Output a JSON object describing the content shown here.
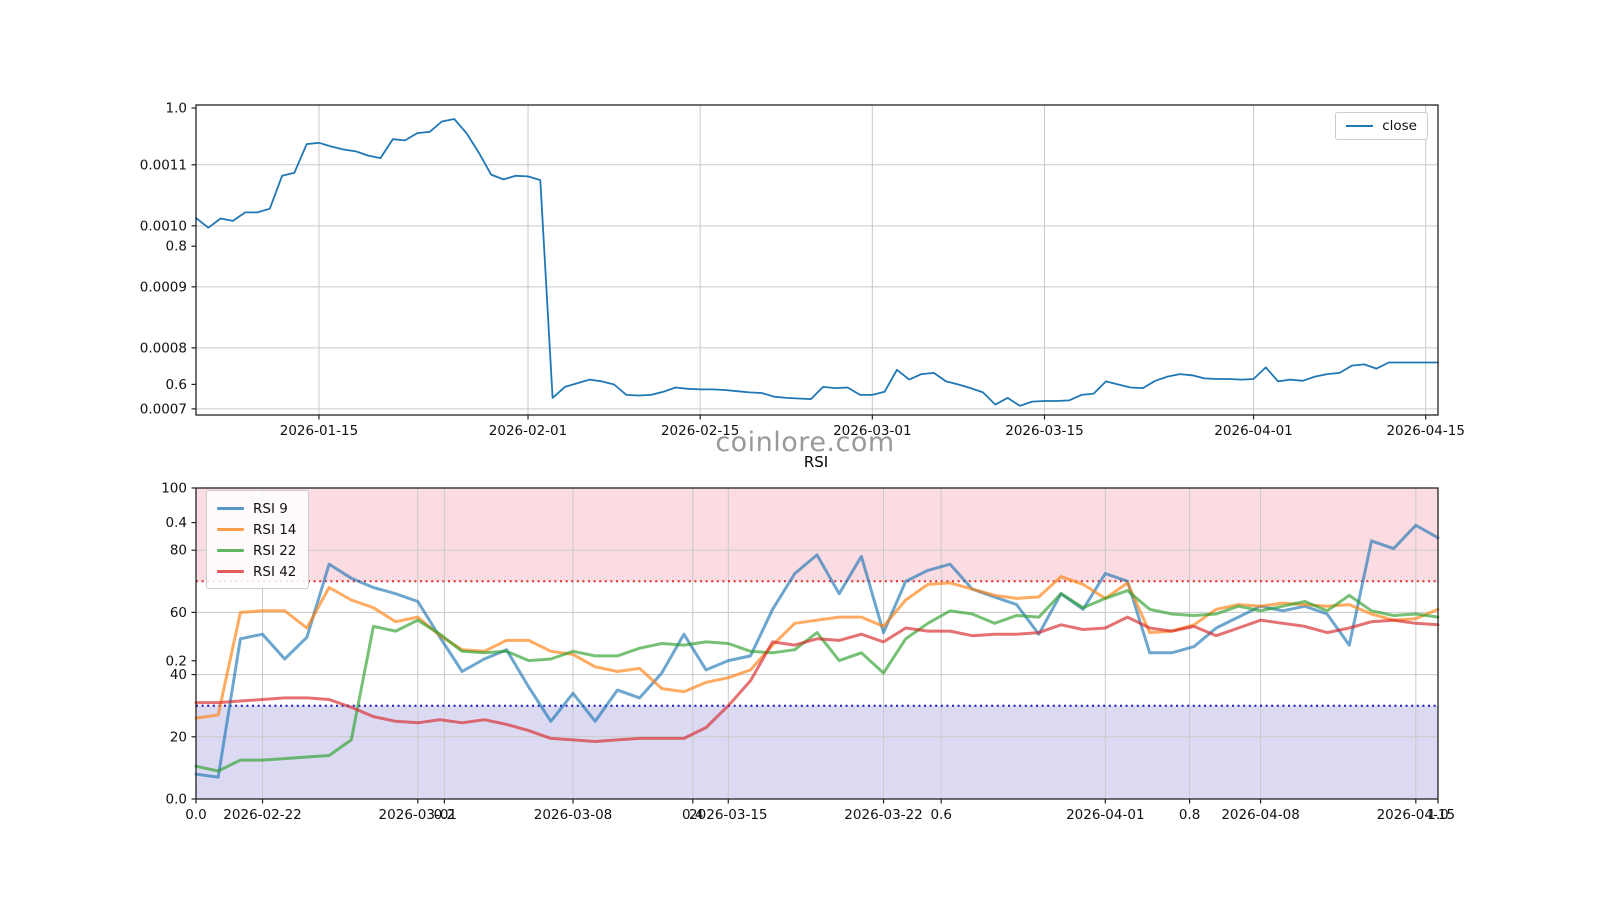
{
  "watermark": "coinlore.com",
  "colors": {
    "frame": "#222222",
    "grid": "#c9c9c9",
    "tick": "#222222",
    "label": "#111111",
    "close_line": "#1f77b4",
    "overbought_band": "#fbdce2",
    "oversold_band": "#dcdaf3",
    "overbought_line": "#dd2c2c",
    "oversold_line": "#1616bf",
    "rsi_line_opacity": 0.65
  },
  "overlay_axis": {
    "x_ticks": [
      {
        "f": 0.0,
        "label": "0.0"
      },
      {
        "f": 0.2,
        "label": "0.2"
      },
      {
        "f": 0.4,
        "label": "0.4"
      },
      {
        "f": 0.6,
        "label": "0.6"
      },
      {
        "f": 0.8,
        "label": "0.8"
      },
      {
        "f": 1.0,
        "label": "1.0"
      }
    ],
    "y_ticks": [
      {
        "f": 1.0,
        "label": "1.0"
      },
      {
        "f": 0.8,
        "label": "0.8"
      },
      {
        "f": 0.6,
        "label": "0.6"
      },
      {
        "f": 0.4,
        "label": "0.4"
      },
      {
        "f": 0.2,
        "label": "0.2"
      },
      {
        "f": 0.0,
        "label": "0.0"
      }
    ]
  },
  "chart_data": [
    {
      "type": "line",
      "title": "",
      "legend_position": "upper right",
      "x_start_date": "2026-01-05",
      "xlim_days": [
        0,
        101
      ],
      "ylim": [
        0.00069,
        0.001198
      ],
      "grid": true,
      "x_ticks": [
        {
          "label": "2026-01-15",
          "day": 10
        },
        {
          "label": "2026-02-01",
          "day": 27
        },
        {
          "label": "2026-02-15",
          "day": 41
        },
        {
          "label": "2026-03-01",
          "day": 55
        },
        {
          "label": "2026-03-15",
          "day": 69
        },
        {
          "label": "2026-04-01",
          "day": 86
        },
        {
          "label": "2026-04-15",
          "day": 100
        }
      ],
      "y_ticks": [
        {
          "v": 0.0007,
          "label": "0.0007"
        },
        {
          "v": 0.0008,
          "label": "0.0008"
        },
        {
          "v": 0.0009,
          "label": "0.0009"
        },
        {
          "v": 0.001,
          "label": "0.0010"
        },
        {
          "v": 0.0011,
          "label": "0.0011"
        }
      ],
      "series": [
        {
          "name": "close",
          "color": "#1f77b4",
          "width": 1.8,
          "opacity": 1,
          "values": [
            0.001013,
            0.000997,
            0.001012,
            0.001008,
            0.001022,
            0.001022,
            0.001028,
            0.001082,
            0.001087,
            0.001134,
            0.001136,
            0.00113,
            0.001125,
            0.001122,
            0.001115,
            0.001111,
            0.001142,
            0.00114,
            0.001152,
            0.001154,
            0.001171,
            0.001175,
            0.001152,
            0.00112,
            0.001084,
            0.001076,
            0.001082,
            0.001081,
            0.001075,
            0.000718,
            0.000736,
            0.000742,
            0.000748,
            0.000745,
            0.00074,
            0.000723,
            0.000722,
            0.000723,
            0.000728,
            0.000735,
            0.000733,
            0.000732,
            0.000732,
            0.000731,
            0.000729,
            0.000727,
            0.000726,
            0.00072,
            0.000718,
            0.000717,
            0.000716,
            0.000736,
            0.000734,
            0.000735,
            0.000723,
            0.000723,
            0.000728,
            0.000764,
            0.000748,
            0.000757,
            0.000759,
            0.000745,
            0.00074,
            0.000734,
            0.000727,
            0.000707,
            0.000718,
            0.000705,
            0.000712,
            0.000713,
            0.000713,
            0.000714,
            0.000723,
            0.000725,
            0.000745,
            0.00074,
            0.000735,
            0.000734,
            0.000746,
            0.000753,
            0.000757,
            0.000755,
            0.00075,
            0.000749,
            0.000749,
            0.000748,
            0.000749,
            0.000768,
            0.000745,
            0.000748,
            0.000746,
            0.000753,
            0.000757,
            0.000759,
            0.000771,
            0.000773,
            0.000766,
            0.000776,
            0.000776,
            0.000776,
            0.000776,
            0.000776
          ]
        }
      ]
    },
    {
      "type": "line",
      "title": "RSI",
      "legend_position": "upper left",
      "x_start_date": "2026-02-19",
      "xlim_days": [
        0,
        56
      ],
      "ylim": [
        0,
        100
      ],
      "grid": true,
      "overbought_level": 70,
      "oversold_level": 30,
      "bands": [
        {
          "from": 70,
          "to": 100,
          "color": "#fbdce2"
        },
        {
          "from": 0,
          "to": 30,
          "color": "#dcdaf3"
        }
      ],
      "hlines": [
        {
          "y": 70,
          "color": "#dd2c2c",
          "style": "dotted"
        },
        {
          "y": 30,
          "color": "#1616bf",
          "style": "dotted"
        }
      ],
      "x_ticks": [
        {
          "label": "2026-02-22",
          "day": 3
        },
        {
          "label": "2026-03-01",
          "day": 10
        },
        {
          "label": "2026-03-08",
          "day": 17
        },
        {
          "label": "2026-03-15",
          "day": 24
        },
        {
          "label": "2026-03-22",
          "day": 31
        },
        {
          "label": "2026-04-01",
          "day": 41
        },
        {
          "label": "2026-04-08",
          "day": 48
        },
        {
          "label": "2026-04-15",
          "day": 55
        }
      ],
      "y_ticks": [
        {
          "v": 20,
          "label": "20"
        },
        {
          "v": 40,
          "label": "40"
        },
        {
          "v": 60,
          "label": "60"
        },
        {
          "v": 80,
          "label": "80"
        },
        {
          "v": 100,
          "label": "100"
        }
      ],
      "series": [
        {
          "name": "RSI 9",
          "color": "#1f77b4",
          "width": 3,
          "opacity": 0.65,
          "values": [
            8,
            7,
            51.5,
            53,
            45,
            52,
            75.5,
            71,
            68,
            66,
            63.5,
            52,
            41,
            45,
            48,
            36,
            25,
            34,
            25,
            35,
            32.5,
            40.5,
            53,
            41.5,
            44.5,
            46,
            61,
            72.5,
            78.5,
            66,
            78,
            53.5,
            70,
            73.5,
            75.5,
            67.5,
            65,
            62.5,
            53,
            66,
            61,
            72.5,
            70,
            47,
            47,
            49,
            55,
            58.5,
            62,
            60.5,
            62,
            59.5,
            49.5,
            83,
            80.5,
            88,
            84
          ]
        },
        {
          "name": "RSI 14",
          "color": "#ff7f0e",
          "width": 3,
          "opacity": 0.65,
          "values": [
            26,
            27,
            60,
            60.5,
            60.5,
            55,
            68,
            64,
            61.5,
            57,
            58.5,
            52.5,
            48,
            47.5,
            51,
            51,
            47.5,
            46.5,
            42.5,
            41,
            42,
            35.5,
            34.5,
            37.5,
            39,
            41.5,
            49.5,
            56.5,
            57.5,
            58.5,
            58.5,
            55.5,
            64,
            69,
            69.5,
            67.5,
            65.5,
            64.5,
            65,
            71.5,
            69,
            64.5,
            69.5,
            53.5,
            54,
            56,
            61,
            62.5,
            62,
            63,
            62.5,
            62,
            62.5,
            59.5,
            57.5,
            58,
            61
          ]
        },
        {
          "name": "RSI 22",
          "color": "#2ca02c",
          "width": 3,
          "opacity": 0.65,
          "values": [
            10.5,
            9,
            12.5,
            12.5,
            13,
            13.5,
            14,
            19,
            55.5,
            54,
            57.5,
            53,
            47.5,
            47,
            47.5,
            44.5,
            45,
            47.5,
            46,
            46,
            48.5,
            50,
            49.5,
            50.5,
            50,
            47.5,
            47,
            48,
            53.5,
            44.5,
            47,
            40.5,
            51.5,
            56.5,
            60.5,
            59.5,
            56.5,
            59,
            58.5,
            66,
            61.5,
            64.5,
            67,
            61,
            59.5,
            59,
            59.5,
            62,
            60.5,
            62,
            63.5,
            60.5,
            65.5,
            60.5,
            59,
            59.5,
            58.5
          ]
        },
        {
          "name": "RSI 42",
          "color": "#d62728",
          "width": 3,
          "opacity": 0.65,
          "values": [
            31,
            31,
            31.5,
            32,
            32.5,
            32.5,
            32,
            29.5,
            26.5,
            25,
            24.5,
            25.5,
            24.5,
            25.5,
            24,
            22,
            19.5,
            19,
            18.5,
            19,
            19.5,
            19.5,
            19.5,
            23,
            30,
            38,
            50.5,
            49.5,
            51.5,
            51,
            53,
            50.5,
            55,
            54,
            54,
            52.5,
            53,
            53,
            53.5,
            56,
            54.5,
            55,
            58.5,
            55,
            54,
            55.5,
            52.5,
            55,
            57.5,
            56.5,
            55.5,
            53.5,
            55,
            57,
            57.5,
            56.5,
            56
          ]
        }
      ]
    }
  ]
}
